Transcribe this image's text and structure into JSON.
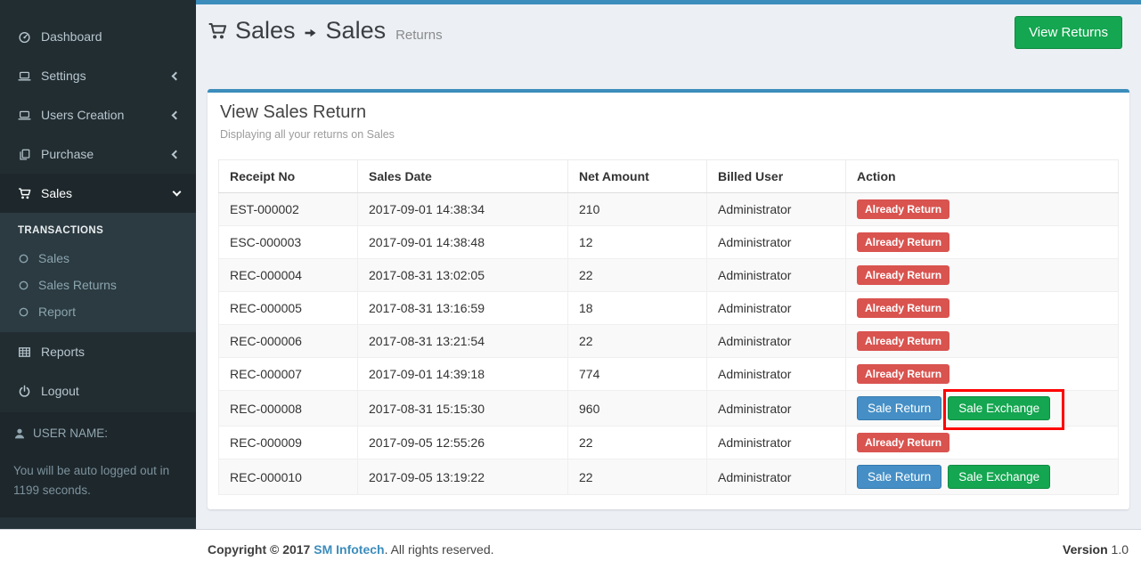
{
  "colors": {
    "accent_blue": "#3c8dbc",
    "button_green": "#14a650",
    "button_blue": "#458fc6",
    "badge_red": "#d9534f",
    "highlight_red": "#ff0000",
    "sidebar_bg": "#222d32",
    "sidebar_submenu_bg": "#2c3b41",
    "sidebar_active_bg": "#1e282c",
    "content_bg": "#ecf0f5"
  },
  "sidebar": {
    "menu": [
      {
        "label": "Dashboard",
        "icon": "dashboard-icon",
        "chevron": "",
        "active": false
      },
      {
        "label": "Settings",
        "icon": "laptop-icon",
        "chevron": "left",
        "active": false
      },
      {
        "label": "Users Creation",
        "icon": "laptop-icon",
        "chevron": "left",
        "active": false
      },
      {
        "label": "Purchase",
        "icon": "copy-icon",
        "chevron": "left",
        "active": false
      },
      {
        "label": "Sales",
        "icon": "cart-icon",
        "chevron": "down",
        "active": true
      }
    ],
    "submenu_header": "TRANSACTIONS",
    "submenu": [
      {
        "label": "Sales",
        "icon": "circle-icon"
      },
      {
        "label": "Sales Returns",
        "icon": "circle-icon"
      },
      {
        "label": "Report",
        "icon": "circle-icon"
      }
    ],
    "menu_bottom": [
      {
        "label": "Reports",
        "icon": "table-icon"
      },
      {
        "label": "Logout",
        "icon": "power-icon"
      }
    ],
    "user_heading": "USER NAME:",
    "logout_notice": "You will be auto logged out in 1199 seconds."
  },
  "header": {
    "title_primary": "Sales",
    "title_secondary": "Sales",
    "title_small": "Returns",
    "view_returns_button": "View Returns"
  },
  "panel": {
    "title": "View Sales Return",
    "subtitle": "Displaying all your returns on Sales"
  },
  "table": {
    "columns": [
      "Receipt No",
      "Sales Date",
      "Net Amount",
      "Billed User",
      "Action"
    ],
    "rows": [
      {
        "receipt": "EST-000002",
        "date": "2017-09-01 14:38:34",
        "amount": "210",
        "user": "Administrator",
        "actions": [
          {
            "label": "Already Return",
            "type": "badge"
          }
        ]
      },
      {
        "receipt": "ESC-000003",
        "date": "2017-09-01 14:38:48",
        "amount": "12",
        "user": "Administrator",
        "actions": [
          {
            "label": "Already Return",
            "type": "badge"
          }
        ]
      },
      {
        "receipt": "REC-000004",
        "date": "2017-08-31 13:02:05",
        "amount": "22",
        "user": "Administrator",
        "actions": [
          {
            "label": "Already Return",
            "type": "badge"
          }
        ]
      },
      {
        "receipt": "REC-000005",
        "date": "2017-08-31 13:16:59",
        "amount": "18",
        "user": "Administrator",
        "actions": [
          {
            "label": "Already Return",
            "type": "badge"
          }
        ]
      },
      {
        "receipt": "REC-000006",
        "date": "2017-08-31 13:21:54",
        "amount": "22",
        "user": "Administrator",
        "actions": [
          {
            "label": "Already Return",
            "type": "badge"
          }
        ]
      },
      {
        "receipt": "REC-000007",
        "date": "2017-09-01 14:39:18",
        "amount": "774",
        "user": "Administrator",
        "actions": [
          {
            "label": "Already Return",
            "type": "badge"
          }
        ]
      },
      {
        "receipt": "REC-000008",
        "date": "2017-08-31 15:15:30",
        "amount": "960",
        "user": "Administrator",
        "actions": [
          {
            "label": "Sale Return",
            "type": "btn-blue"
          },
          {
            "label": "Sale Exchange",
            "type": "btn-green",
            "highlighted": true
          }
        ]
      },
      {
        "receipt": "REC-000009",
        "date": "2017-09-05 12:55:26",
        "amount": "22",
        "user": "Administrator",
        "actions": [
          {
            "label": "Already Return",
            "type": "badge"
          }
        ]
      },
      {
        "receipt": "REC-000010",
        "date": "2017-09-05 13:19:22",
        "amount": "22",
        "user": "Administrator",
        "actions": [
          {
            "label": "Sale Return",
            "type": "btn-blue"
          },
          {
            "label": "Sale Exchange",
            "type": "btn-green"
          }
        ]
      }
    ]
  },
  "footer": {
    "copyright_prefix": "Copyright © 2017 ",
    "company": "SM Infotech",
    "copyright_suffix": ". All rights reserved.",
    "version_label": "Version",
    "version_value": "1.0"
  }
}
